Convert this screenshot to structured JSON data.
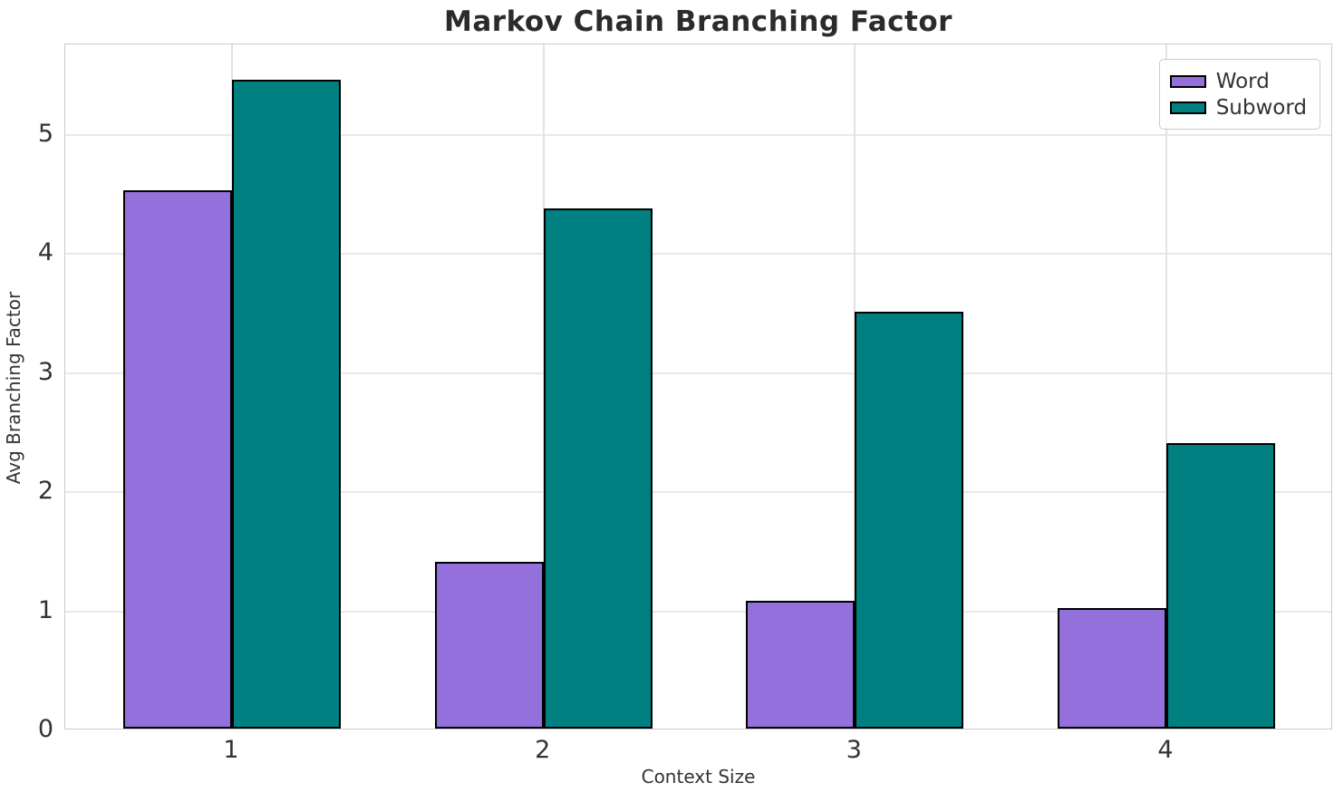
{
  "chart_data": {
    "type": "bar",
    "title": "Markov Chain Branching Factor",
    "xlabel": "Context Size",
    "ylabel": "Avg Branching Factor",
    "categories": [
      "1",
      "2",
      "3",
      "4"
    ],
    "series": [
      {
        "name": "Word",
        "color": "#9370DB",
        "values": [
          4.52,
          1.4,
          1.07,
          1.01
        ]
      },
      {
        "name": "Subword",
        "color": "#008080",
        "values": [
          5.45,
          4.37,
          3.5,
          2.4
        ]
      }
    ],
    "yticks": [
      0,
      1,
      2,
      3,
      4,
      5
    ],
    "ylim": [
      0,
      5.76
    ],
    "grid": true,
    "legend_position": "upper right",
    "bar_edge_color": "#000000",
    "colors": {
      "grid": "#e8e8e8",
      "spine": "#cccccc",
      "text": "#333333",
      "title": "#2b2b2b"
    }
  }
}
